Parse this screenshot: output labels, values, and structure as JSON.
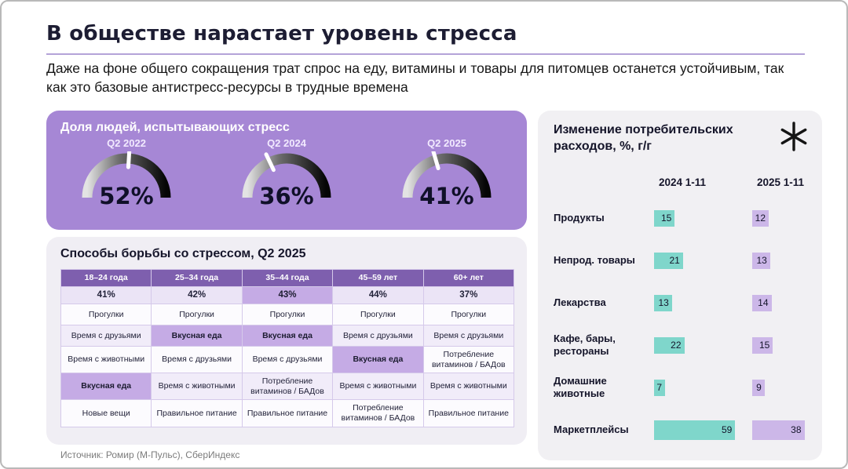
{
  "page": {
    "title": "В обществе нарастает уровень стресса",
    "subtitle": "Даже на фоне общего сокращения трат спрос на еду, витамины и товары для питомцев останется устойчивым, так как это базовые антистресс-ресурсы в трудные времена",
    "source": "Источник: Ромир (М-Пульс), СберИндекс"
  },
  "stress_panel": {
    "title": "Доля людей, испытывающих стресс",
    "gauges": [
      {
        "label": "Q2 2022",
        "value": 52,
        "display": "52%"
      },
      {
        "label": "Q2 2024",
        "value": 36,
        "display": "36%"
      },
      {
        "label": "Q2 2025",
        "value": 41,
        "display": "41%"
      }
    ]
  },
  "coping_table": {
    "title": "Способы борьбы со стрессом, Q2 2025",
    "columns": [
      "18–24 года",
      "25–34 года",
      "35–44 года",
      "45–59 лет",
      "60+ лет"
    ],
    "percent_row": [
      "41%",
      "42%",
      "43%",
      "44%",
      "37%"
    ],
    "percent_highlight_index": 2,
    "rows": [
      [
        {
          "t": "Прогулки"
        },
        {
          "t": "Прогулки"
        },
        {
          "t": "Прогулки"
        },
        {
          "t": "Прогулки"
        },
        {
          "t": "Прогулки"
        }
      ],
      [
        {
          "t": "Время с друзьями"
        },
        {
          "t": "Вкусная еда",
          "hl": true
        },
        {
          "t": "Вкусная еда",
          "hl": true
        },
        {
          "t": "Время с друзьями"
        },
        {
          "t": "Время с друзьями"
        }
      ],
      [
        {
          "t": "Время с животными"
        },
        {
          "t": "Время с друзьями"
        },
        {
          "t": "Время с друзьями"
        },
        {
          "t": "Вкусная еда",
          "hl": true
        },
        {
          "t": "Потребление витаминов / БАДов"
        }
      ],
      [
        {
          "t": "Вкусная еда",
          "hl": true
        },
        {
          "t": "Время с животными"
        },
        {
          "t": "Потребление витаминов / БАДов"
        },
        {
          "t": "Время с животными"
        },
        {
          "t": "Время с животными"
        }
      ],
      [
        {
          "t": "Новые вещи"
        },
        {
          "t": "Правильное питание"
        },
        {
          "t": "Правильное питание"
        },
        {
          "t": "Потребление витаминов / БАДов"
        },
        {
          "t": "Правильное питание"
        }
      ]
    ]
  },
  "spending_panel": {
    "title": "Изменение потребительских расходов, %, г/г",
    "col1": "2024 1-11",
    "col2": "2025 1-11",
    "rows": [
      {
        "label": "Продукты",
        "v2024": 15,
        "v2025": 12
      },
      {
        "label": "Непрод. товары",
        "v2024": 21,
        "v2025": 13
      },
      {
        "label": "Лекарства",
        "v2024": 13,
        "v2025": 14
      },
      {
        "label": "Кафе, бары, рестораны",
        "v2024": 22,
        "v2025": 15
      },
      {
        "label": "Домашние животные",
        "v2024": 7,
        "v2025": 9
      },
      {
        "label": "Маркетплейсы",
        "v2024": 59,
        "v2025": 38
      }
    ]
  },
  "colors": {
    "panel_purple": "#a687d5",
    "table_header_purple": "#7e5fae",
    "highlight_purple": "#c5abe5",
    "bar_teal": "#7fd6cb",
    "bar_purple": "#ccb7e8"
  },
  "chart_data": [
    {
      "type": "bar",
      "style": "semicircle_gauges",
      "title": "Доля людей, испытывающих стресс",
      "categories": [
        "Q2 2022",
        "Q2 2024",
        "Q2 2025"
      ],
      "values": [
        52,
        36,
        41
      ],
      "unit": "%"
    },
    {
      "type": "table",
      "title": "Способы борьбы со стрессом, Q2 2025",
      "columns": [
        "18–24 года",
        "25–34 года",
        "35–44 года",
        "45–59 лет",
        "60+ лет"
      ],
      "rows": [
        [
          "41%",
          "42%",
          "43%",
          "44%",
          "37%"
        ],
        [
          "Прогулки",
          "Прогулки",
          "Прогулки",
          "Прогулки",
          "Прогулки"
        ],
        [
          "Время с друзьями",
          "Вкусная еда",
          "Вкусная еда",
          "Время с друзьями",
          "Время с друзьями"
        ],
        [
          "Время с животными",
          "Время с друзьями",
          "Время с друзьями",
          "Вкусная еда",
          "Потребление витаминов / БАДов"
        ],
        [
          "Вкусная еда",
          "Время с животными",
          "Потребление витаминов / БАДов",
          "Время с животными",
          "Время с животными"
        ],
        [
          "Новые вещи",
          "Правильное питание",
          "Правильное питание",
          "Потребление витаминов / БАДов",
          "Правильное питание"
        ]
      ]
    },
    {
      "type": "bar",
      "title": "Изменение потребительских расходов, %, г/г",
      "categories": [
        "Продукты",
        "Непрод. товары",
        "Лекарства",
        "Кафе, бары, рестораны",
        "Домашние животные",
        "Маркетплейсы"
      ],
      "series": [
        {
          "name": "2024 1-11",
          "values": [
            15,
            21,
            13,
            22,
            7,
            59
          ]
        },
        {
          "name": "2025 1-11",
          "values": [
            12,
            13,
            14,
            15,
            9,
            38
          ]
        }
      ],
      "legend_position": "top",
      "grid": false
    }
  ]
}
